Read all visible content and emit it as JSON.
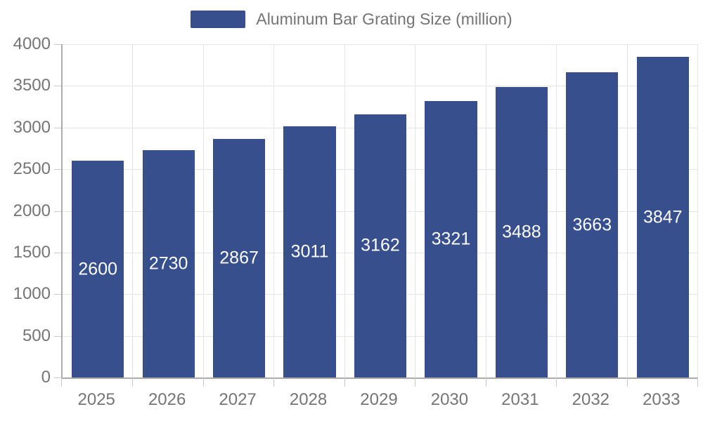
{
  "legend": {
    "label": "Aluminum Bar Grating Size (million)"
  },
  "colors": {
    "bar": "#374f8c",
    "value_label": "#ffffff",
    "axis_label": "#757575",
    "legend_text": "#747474",
    "grid_line": "#e5e5e5",
    "tick_mark": "#c9c9c9",
    "axis_line": "#ababab",
    "background": "#ffffff"
  },
  "chart_data": {
    "type": "bar",
    "title": "Aluminum Bar Grating Size (million)",
    "categories": [
      "2025",
      "2026",
      "2027",
      "2028",
      "2029",
      "2030",
      "2031",
      "2032",
      "2033"
    ],
    "values": [
      2600,
      2730,
      2867,
      3011,
      3162,
      3321,
      3488,
      3663,
      3847
    ],
    "xlabel": "",
    "ylabel": "",
    "ylim": [
      0,
      4000
    ],
    "yticks": [
      0,
      500,
      1000,
      1500,
      2000,
      2500,
      3000,
      3500,
      4000
    ],
    "grid": true,
    "legend_position": "top-center",
    "value_label_position": "inside-middle",
    "bar_width_fraction": 0.74
  }
}
